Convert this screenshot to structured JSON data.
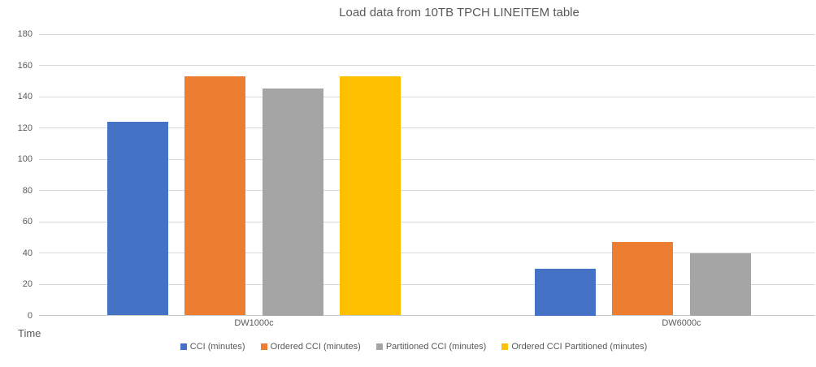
{
  "chart_data": {
    "type": "bar",
    "title": "Load data from 10TB TPCH LINEITEM table",
    "corner_axis_label": "Time",
    "categories": [
      "DW1000c",
      "DW6000c"
    ],
    "series": [
      {
        "name": "CCI (minutes)",
        "color": "#4472C4",
        "values": [
          124,
          30
        ]
      },
      {
        "name": "Ordered CCI (minutes)",
        "color": "#ED7D31",
        "values": [
          153,
          47
        ]
      },
      {
        "name": "Partitioned CCI (minutes)",
        "color": "#A5A5A5",
        "values": [
          145,
          40
        ]
      },
      {
        "name": "Ordered CCI Partitioned (minutes)",
        "color": "#FFC000",
        "values": [
          153,
          0
        ]
      }
    ],
    "ylim": [
      0,
      180
    ],
    "ytick_step": 20,
    "yticks": [
      0,
      20,
      40,
      60,
      80,
      100,
      120,
      140,
      160,
      180
    ],
    "grid": true,
    "legend_position": "bottom",
    "colors": {
      "gridline": "#D9D9D9",
      "axis_line": "#C9C9C9",
      "text": "#595959"
    }
  }
}
